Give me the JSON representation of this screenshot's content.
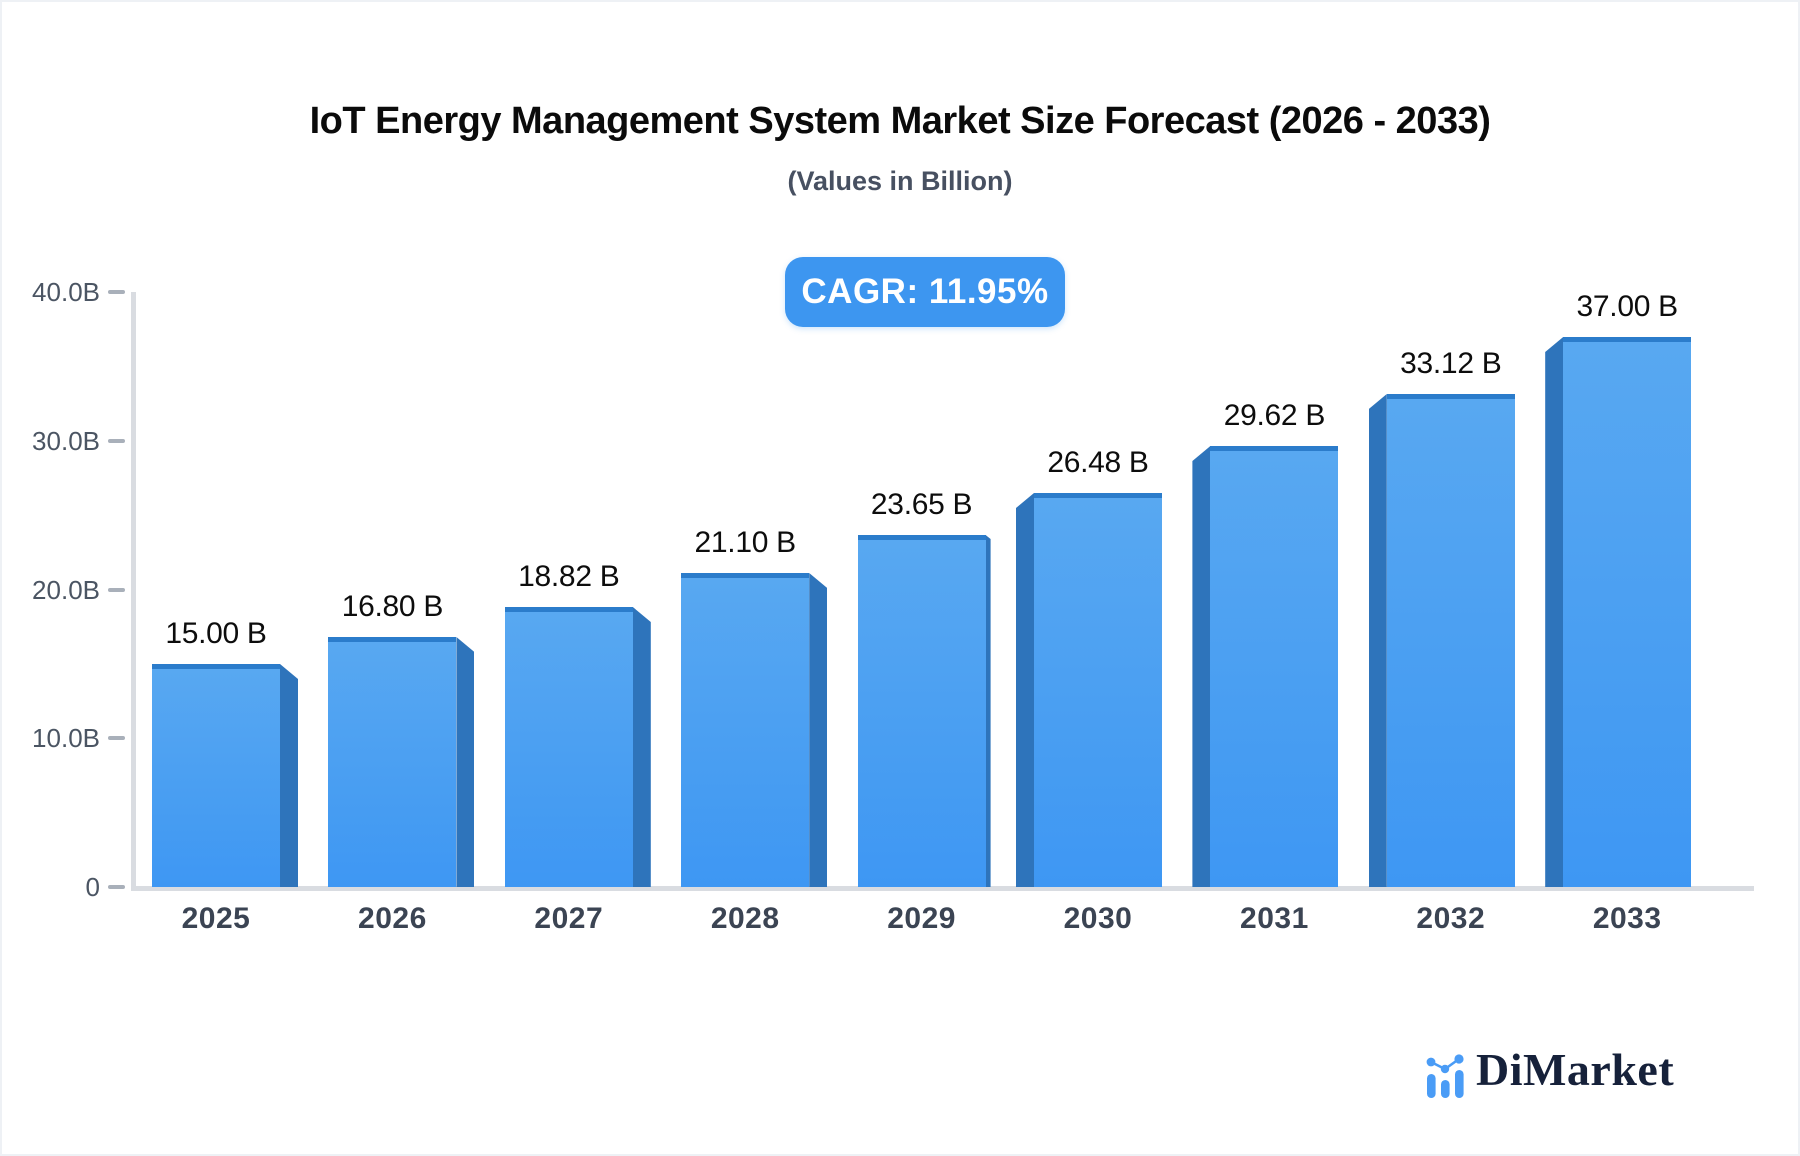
{
  "title": "IoT Energy Management System Market Size Forecast (2026 - 2033)",
  "subtitle": "(Values in Billion)",
  "badge": {
    "label": "CAGR: 11.95%"
  },
  "brand": {
    "name": "DiMarket"
  },
  "chart_data": {
    "type": "bar",
    "title": "IoT Energy Management System Market Size Forecast (2026 - 2033)",
    "subtitle": "(Values in Billion)",
    "cagr_annotation": "CAGR: 11.95%",
    "categories": [
      "2025",
      "2026",
      "2027",
      "2028",
      "2029",
      "2030",
      "2031",
      "2032",
      "2033"
    ],
    "values": [
      15.0,
      16.8,
      18.82,
      21.1,
      23.65,
      26.48,
      29.62,
      33.12,
      37.0
    ],
    "bar_labels": [
      "15.00 B",
      "16.80 B",
      "18.82 B",
      "21.10 B",
      "23.65 B",
      "26.48 B",
      "29.62 B",
      "33.12 B",
      "37.00 B"
    ],
    "xlabel": "",
    "ylabel": "",
    "ylim": [
      0,
      40
    ],
    "grid": false,
    "legend": false,
    "y_ticks": [
      {
        "value": 0,
        "label": "0"
      },
      {
        "value": 10,
        "label": "10.0B"
      },
      {
        "value": 20,
        "label": "20.0B"
      },
      {
        "value": 30,
        "label": "30.0B"
      },
      {
        "value": 40,
        "label": "40.0B"
      }
    ],
    "colors": {
      "bar_face_top": "#58a8f1",
      "bar_face_bottom": "#3e97f3",
      "bar_top_edge": "#2b7ccb",
      "bar_side": "#2e74bb",
      "badge_bg": "#3d96f0",
      "axis": "#d9dce1",
      "tick": "#a9b0ba",
      "tick_label": "#4b5563",
      "year_label": "#3b4453",
      "value_label": "#0d0d0d",
      "brand_navy": "#16213a",
      "brand_blue": "#4a9cf6"
    }
  }
}
